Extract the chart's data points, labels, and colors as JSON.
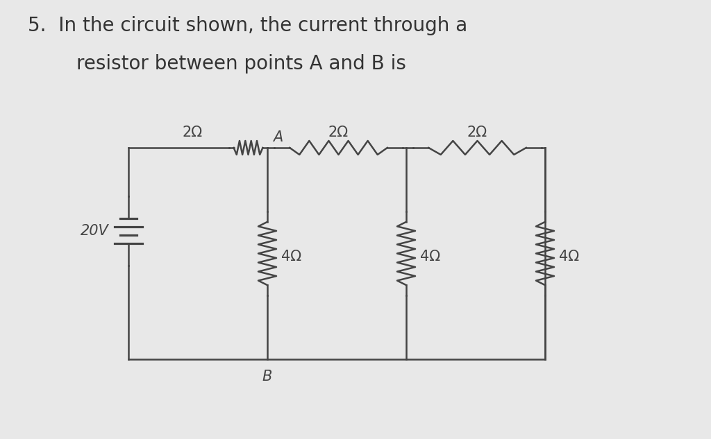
{
  "background_color": "#e8e8e8",
  "title_line1": "5.  In the circuit shown, the current through a",
  "title_line2": "resistor between points A and B is",
  "title_fontsize": 20,
  "title_color": "#333333",
  "circuit_color": "#444444",
  "label_color": "#444444",
  "voltage_label": "20V",
  "resistor_labels_top": [
    "2Ω",
    "2Ω",
    "2Ω"
  ],
  "resistor_labels_vert": [
    "4Ω",
    "4Ω",
    "4Ω"
  ],
  "point_A_label": "A",
  "point_B_label": "B",
  "lw": 1.8,
  "font_size_labels": 15
}
